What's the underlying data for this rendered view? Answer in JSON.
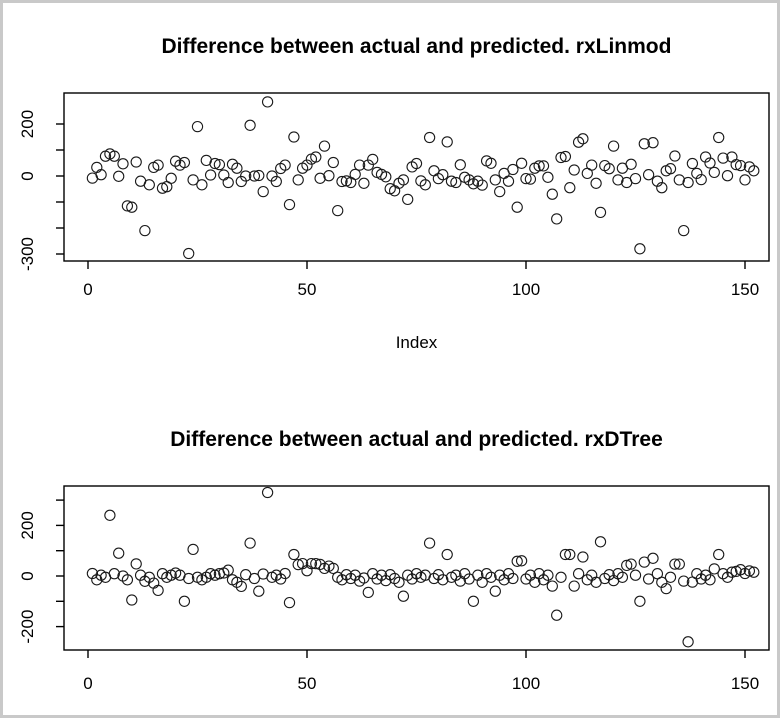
{
  "chart_data": [
    {
      "type": "scatter",
      "title": "Difference between actual and predicted. rxLinmod",
      "xlabel": "Index",
      "ylabel": "",
      "marker": "open-circle",
      "x_is_index": true,
      "n_points": 152,
      "xlim": [
        0,
        155
      ],
      "ylim": [
        -320,
        300
      ],
      "grid": false,
      "xticks": [
        0,
        50,
        100,
        150
      ],
      "yticks": [
        {
          "v": 200,
          "label": "200"
        },
        {
          "v": 100,
          "label": ""
        },
        {
          "v": 0,
          "label": "0"
        },
        {
          "v": -100,
          "label": ""
        },
        {
          "v": -200,
          "label": ""
        },
        {
          "v": -300,
          "label": "-300"
        }
      ],
      "values": [
        -8,
        33,
        5,
        76,
        85,
        76,
        -1,
        47,
        -115,
        -120,
        54,
        -20,
        -210,
        -34,
        33,
        42,
        -47,
        -41,
        -9,
        57,
        42,
        52,
        -298,
        -15,
        190,
        -34,
        60,
        4,
        48,
        44,
        4,
        -25,
        45,
        30,
        -21,
        0,
        195,
        0,
        2,
        -60,
        285,
        0,
        -21,
        29,
        42,
        -110,
        150,
        -15,
        30,
        42,
        65,
        73,
        -9,
        115,
        1,
        52,
        -133,
        -21,
        -19,
        -25,
        6,
        42,
        -28,
        42,
        64,
        14,
        6,
        -3,
        -49,
        -57,
        -28,
        -15,
        -90,
        35,
        48,
        -19,
        -34,
        148,
        20,
        -10,
        5,
        131,
        -20,
        -25,
        43,
        -5,
        -15,
        -30,
        -20,
        -35,
        58,
        49,
        -15,
        -60,
        10,
        -20,
        25,
        -120,
        49,
        -10,
        -12,
        30,
        39,
        39,
        -5,
        -70,
        -165,
        71,
        75,
        -45,
        23,
        130,
        143,
        10,
        42,
        -28,
        -140,
        40,
        28,
        115,
        -15,
        30,
        -25,
        45,
        -10,
        -280,
        124,
        5,
        128,
        -20,
        -45,
        20,
        28,
        77,
        -15,
        -210,
        -25,
        48,
        10,
        -14,
        73,
        50,
        14,
        148,
        69,
        1,
        73,
        44,
        40,
        -15,
        35,
        20
      ]
    },
    {
      "type": "scatter",
      "title": "Difference between actual and predicted. rxDTree",
      "xlabel": "",
      "ylabel": "",
      "marker": "open-circle",
      "x_is_index": true,
      "n_points": 152,
      "xlim": [
        0,
        155
      ],
      "ylim": [
        -290,
        345
      ],
      "grid": false,
      "xticks": [
        0,
        50,
        100,
        150
      ],
      "yticks": [
        {
          "v": 300,
          "label": ""
        },
        {
          "v": 200,
          "label": "200"
        },
        {
          "v": 100,
          "label": ""
        },
        {
          "v": 0,
          "label": "0"
        },
        {
          "v": -100,
          "label": ""
        },
        {
          "v": -200,
          "label": "-200"
        }
      ],
      "values": [
        10,
        -15,
        3,
        -5,
        240,
        9,
        90,
        0,
        -15,
        -95,
        48,
        3,
        -21,
        -5,
        -28,
        -57,
        9,
        -5,
        3,
        12,
        3,
        -100,
        -10,
        105,
        -5,
        -15,
        -5,
        9,
        3,
        9,
        12,
        23,
        -15,
        -25,
        -41,
        5,
        130,
        -10,
        -60,
        8,
        330,
        -5,
        3,
        -12,
        10,
        -105,
        85,
        45,
        49,
        21,
        49,
        49,
        46,
        30,
        39,
        30,
        -5,
        -15,
        5,
        -10,
        3,
        -20,
        -8,
        -65,
        9,
        -12,
        3,
        -18,
        5,
        -10,
        -25,
        -80,
        3,
        -12,
        9,
        -5,
        3,
        130,
        -10,
        5,
        -15,
        85,
        -5,
        3,
        -20,
        9,
        -12,
        -100,
        3,
        -25,
        9,
        -5,
        -60,
        3,
        -15,
        9,
        -10,
        58,
        60,
        -12,
        3,
        -25,
        9,
        -15,
        3,
        -40,
        -155,
        -5,
        85,
        85,
        -40,
        9,
        75,
        -15,
        3,
        -25,
        135,
        -10,
        5,
        -18,
        9,
        -5,
        42,
        47,
        3,
        -100,
        55,
        -12,
        70,
        9,
        -25,
        -50,
        -5,
        47,
        47,
        -20,
        -260,
        -24,
        9,
        -12,
        3,
        -15,
        28,
        85,
        9,
        -5,
        15,
        18,
        25,
        10,
        20,
        15
      ]
    }
  ]
}
